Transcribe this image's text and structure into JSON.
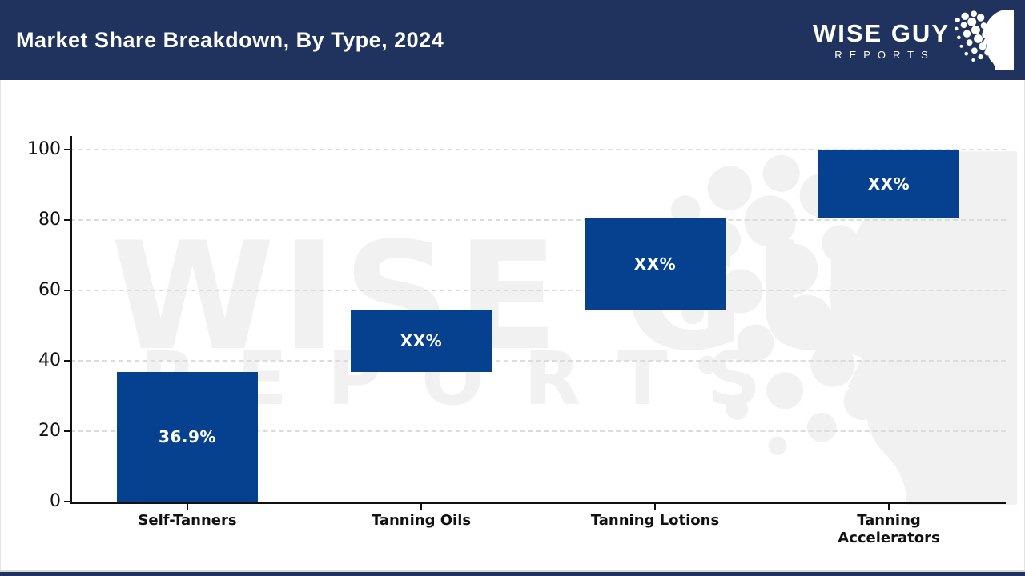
{
  "header": {
    "title": "Market Share Breakdown, By Type, 2024",
    "logo": {
      "line1": "WISE GUY",
      "line2": "REPORTS"
    }
  },
  "watermark": {
    "line1": "WISE GUY",
    "line2": "REPORTS"
  },
  "colors": {
    "header_bg": "#1f335e",
    "bar_blue": "#05418f",
    "grid_gray": "#dcdcdc",
    "watermark_gray": "#f1f1f1"
  },
  "chart_data": {
    "type": "bar",
    "subtype": "waterfall",
    "title": "Market Share Breakdown, By Type, 2024",
    "categories": [
      "Self-Tanners",
      "Tanning Oils",
      "Tanning Lotions",
      "Tanning Accelerators"
    ],
    "bars": [
      {
        "label": "36.9%",
        "start": 0,
        "end": 36.9
      },
      {
        "label": "XX%",
        "start": 36.9,
        "end": 54.3
      },
      {
        "label": "XX%",
        "start": 54.3,
        "end": 80.5
      },
      {
        "label": "XX%",
        "start": 80.5,
        "end": 100
      }
    ],
    "yticks": [
      0,
      20,
      40,
      60,
      80,
      100
    ],
    "ylim": [
      0,
      105
    ],
    "grid": "horizontal-dashed",
    "legend": "none",
    "xlabel": "",
    "ylabel": ""
  }
}
